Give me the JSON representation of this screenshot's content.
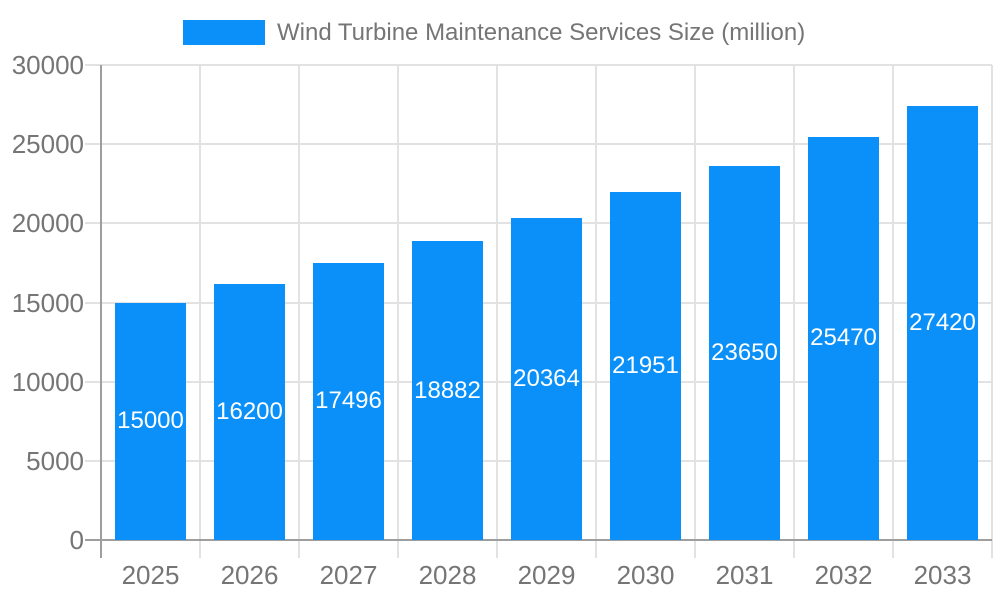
{
  "chart_data": {
    "type": "bar",
    "title": "Wind Turbine Maintenance Services Size (million)",
    "categories": [
      "2025",
      "2026",
      "2027",
      "2028",
      "2029",
      "2030",
      "2031",
      "2032",
      "2033"
    ],
    "values": [
      15000,
      16200,
      17496,
      18882,
      20364,
      21951,
      23650,
      25470,
      27420
    ],
    "xlabel": "",
    "ylabel": "",
    "ylim": [
      0,
      30000
    ],
    "yticks": [
      0,
      5000,
      10000,
      15000,
      20000,
      25000,
      30000
    ],
    "grid": "both",
    "legend_position": "top-center",
    "bar_labels_inside": true,
    "colors": {
      "bar": "#0a90f8",
      "bar_label_text": "#ffffff",
      "axis_text": "#757575",
      "grid_line": "#e2e2e2",
      "axis_line": "#9e9e9e",
      "background": "#ffffff"
    }
  }
}
